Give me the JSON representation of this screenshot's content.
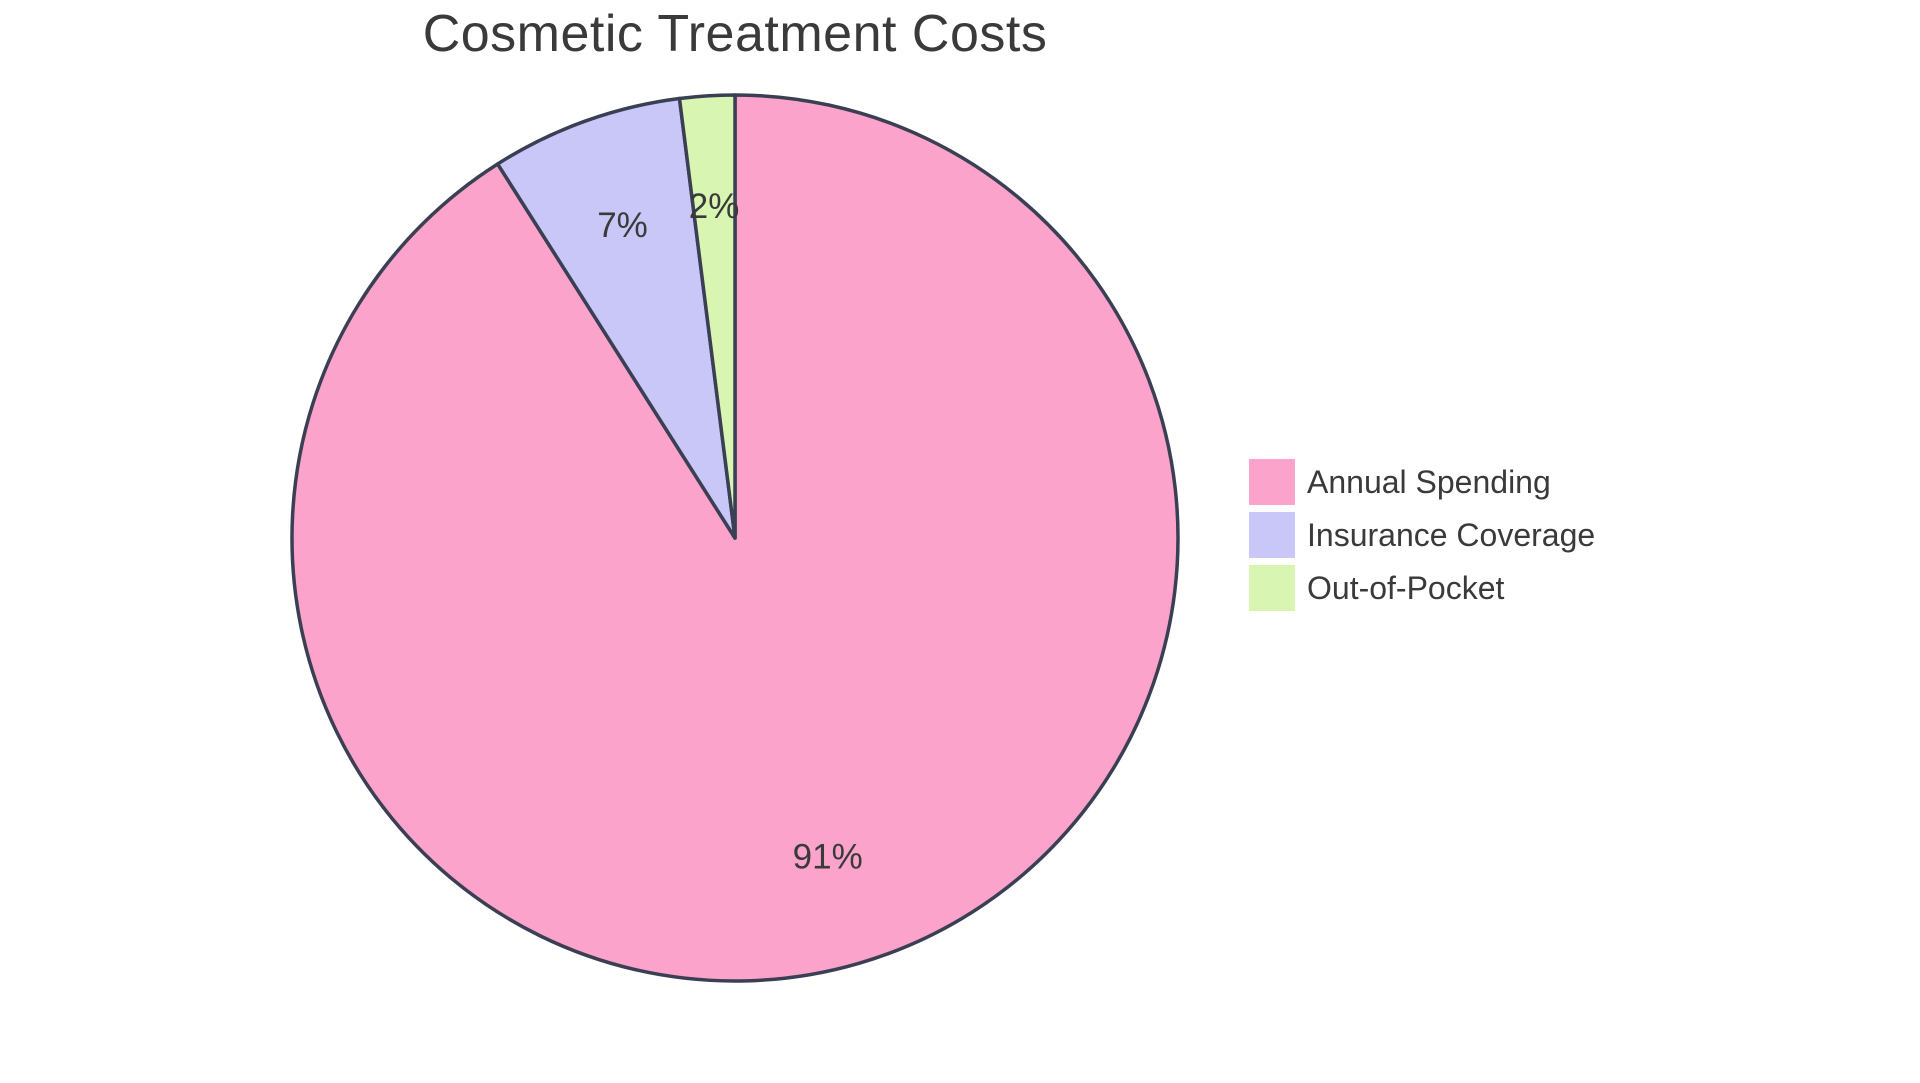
{
  "title": "Cosmetic Treatment Costs",
  "chart_data": {
    "type": "pie",
    "title": "Cosmetic Treatment Costs",
    "categories": [
      "Annual Spending",
      "Insurance Coverage",
      "Out-of-Pocket"
    ],
    "values": [
      91,
      7,
      2
    ],
    "percent_labels": [
      "91%",
      "7%",
      "2%"
    ],
    "colors": [
      "#FCA3CB",
      "#C9C6F8",
      "#D9F5B2"
    ],
    "edge_color": "#3B3F54",
    "text_color": "#3A3A3A",
    "background_color": "#FFFFFF",
    "start_angle": "top",
    "direction": "clockwise",
    "legend_position": "right",
    "legend_entries": [
      "Annual Spending",
      "Insurance Coverage",
      "Out-of-Pocket"
    ]
  }
}
